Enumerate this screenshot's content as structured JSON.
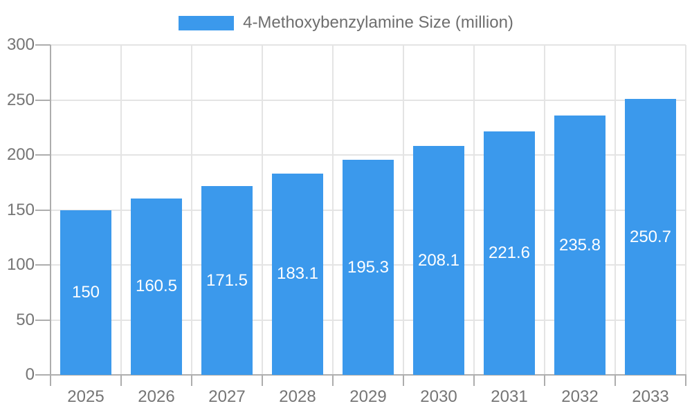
{
  "chart_data": {
    "type": "bar",
    "legend": "4-Methoxybenzylamine Size (million)",
    "legend_position": "top",
    "categories": [
      "2025",
      "2026",
      "2027",
      "2028",
      "2029",
      "2030",
      "2031",
      "2032",
      "2033"
    ],
    "series": [
      {
        "name": "4-Methoxybenzylamine Size (million)",
        "values": [
          150,
          160.5,
          171.5,
          183.1,
          195.3,
          208.1,
          221.6,
          235.8,
          250.7
        ]
      }
    ],
    "xlabel": "",
    "ylabel": "",
    "ylim": [
      0,
      300
    ],
    "yticks": [
      0,
      50,
      100,
      150,
      200,
      250,
      300
    ],
    "grid": true,
    "colors": {
      "bar": "#3B99EC",
      "axis": "#ADADAD",
      "gridline": "#E4E4E4",
      "tick_label": "#757575",
      "legend_text": "#6E6E6E",
      "bar_label": "#FFFFFF",
      "background": "#FFFFFF"
    }
  }
}
